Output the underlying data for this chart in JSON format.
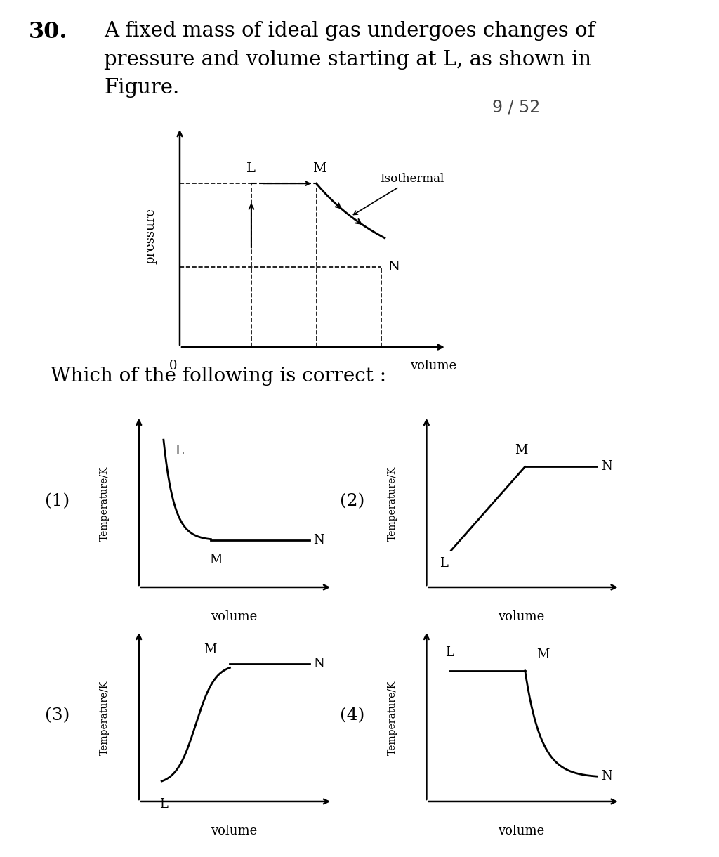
{
  "title_num": "30.",
  "title_text": "A fixed mass of ideal gas undergoes changes of\npressure and volume starting at L, as shown in\nFigure.",
  "page_indicator": "9 / 52",
  "question_text": "Which of the following is correct :",
  "bg_color": "#ffffff",
  "text_color": "#000000",
  "main_diagram": {
    "ylabel": "pressure",
    "xlabel": "volume",
    "origin_label": "0",
    "isothermal_label": "Isothermal"
  },
  "sub_labels": [
    "(1)",
    "(2)",
    "(3)",
    "(4)"
  ],
  "subplot_ylabel": "Temperature/K",
  "subplot_xlabel": "volume"
}
